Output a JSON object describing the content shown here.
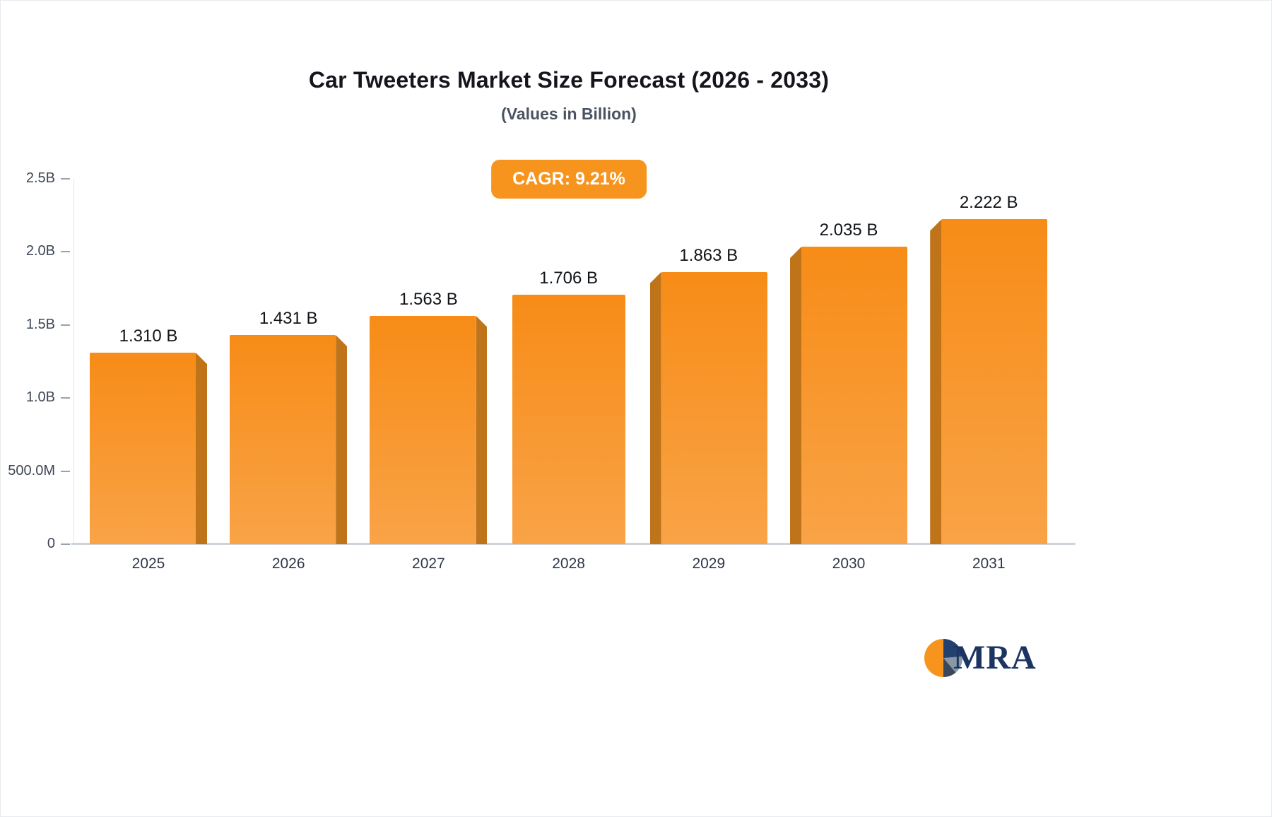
{
  "header": {
    "title": "Car Tweeters Market Size Forecast (2026 - 2033)",
    "subtitle": "(Values in Billion)"
  },
  "badge": {
    "label": "CAGR: 9.21%",
    "bg_color": "#f7941e",
    "text_color": "#ffffff"
  },
  "chart_data": {
    "type": "bar",
    "title": "Car Tweeters Market Size Forecast (2026 - 2033)",
    "subtitle": "(Values in Billion)",
    "categories": [
      "2025",
      "2026",
      "2027",
      "2028",
      "2029",
      "2030",
      "2031"
    ],
    "values": [
      1.31,
      1.431,
      1.563,
      1.706,
      1.863,
      2.035,
      2.222
    ],
    "value_labels": [
      "1.310 B",
      "1.431 B",
      "1.563 B",
      "1.706 B",
      "1.863 B",
      "2.035 B",
      "2.222 B"
    ],
    "xlabel": "",
    "ylabel": "",
    "ylim": [
      0,
      2.5
    ],
    "y_ticks": [
      "2.5B",
      "2.0B",
      "1.5B",
      "1.0B",
      "500.0M",
      "0"
    ],
    "y_tick_values": [
      2.5,
      2.0,
      1.5,
      1.0,
      0.5,
      0
    ],
    "grid": "off",
    "legend": "none",
    "bar_color": "#f7941e",
    "bar_side_color": "#c0741a"
  },
  "logo": {
    "text": "MRA"
  }
}
